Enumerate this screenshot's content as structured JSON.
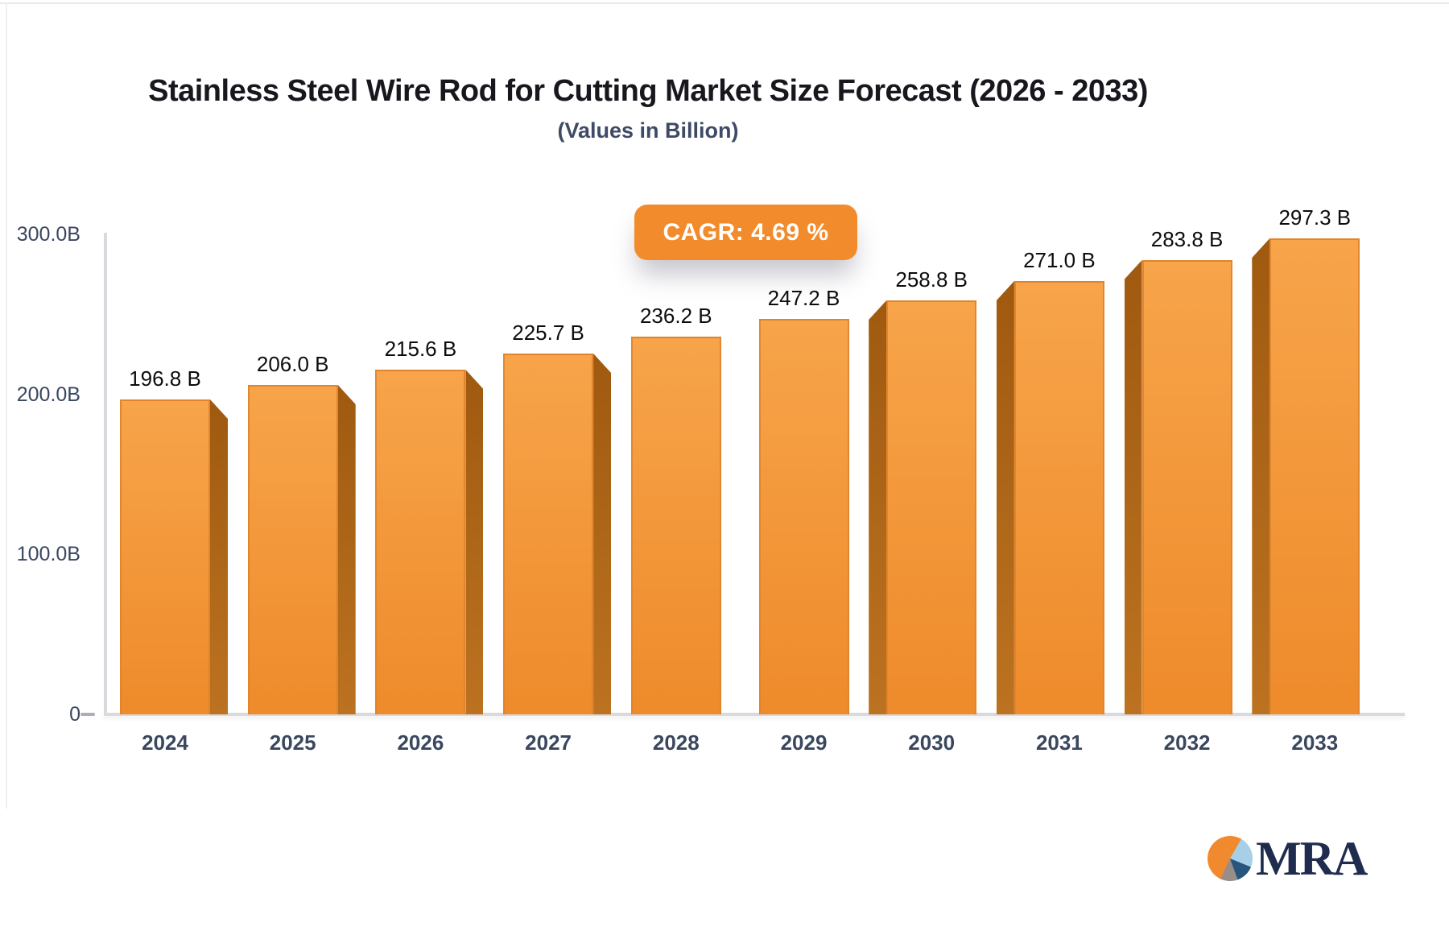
{
  "title": "Stainless Steel Wire Rod for Cutting Market Size Forecast (2026 - 2033)",
  "subtitle": "(Values in Billion)",
  "badge": {
    "label": "CAGR: 4.69 %"
  },
  "logo": {
    "text": "MRA"
  },
  "colors": {
    "bar_face_top": "#F7A44A",
    "bar_face_bottom": "#EE8B2B",
    "bar_side_top": "#9F5A10",
    "bar_side_bottom": "#BC7220",
    "badge_bg": "#F28B2B",
    "axis_line": "#D9D9DE",
    "tick_text": "#3B475F",
    "value_text": "#0D0D10"
  },
  "chart_data": {
    "type": "bar",
    "title": "Stainless Steel Wire Rod for Cutting Market Size Forecast (2026 - 2033)",
    "subtitle": "(Values in Billion)",
    "xlabel": "",
    "ylabel": "",
    "ylim": [
      0,
      300
    ],
    "grid": false,
    "legend": "none",
    "categories": [
      "2024",
      "2025",
      "2026",
      "2027",
      "2028",
      "2029",
      "2030",
      "2031",
      "2032",
      "2033"
    ],
    "values": [
      196.8,
      206.0,
      215.6,
      225.7,
      236.2,
      247.2,
      258.8,
      271.0,
      283.8,
      297.3
    ],
    "value_labels": [
      "196.8 B",
      "206.0 B",
      "215.6 B",
      "225.7 B",
      "236.2 B",
      "247.2 B",
      "258.8 B",
      "271.0 B",
      "283.8 B",
      "297.3 B"
    ],
    "y_ticks": [
      {
        "label": "300.0B",
        "value": 300
      },
      {
        "label": "200.0B",
        "value": 200
      },
      {
        "label": "100.0B",
        "value": 100
      },
      {
        "label": "0",
        "value": 0
      }
    ],
    "side_3d": [
      "right",
      "right",
      "right",
      "right",
      "none",
      "none",
      "left",
      "left",
      "left",
      "left"
    ],
    "annotation": "CAGR: 4.69 %"
  }
}
